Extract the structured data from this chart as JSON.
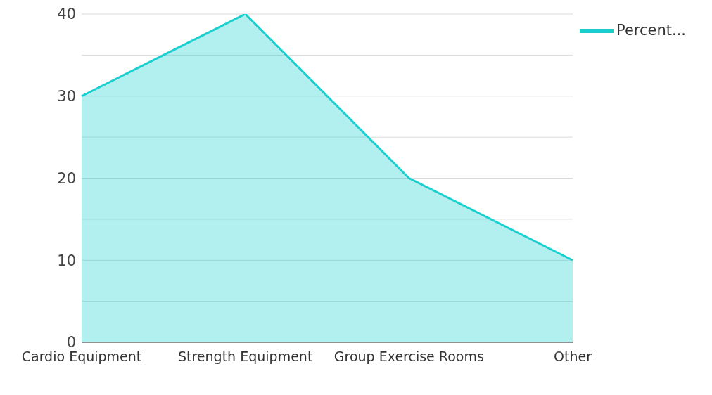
{
  "chart_data": {
    "type": "area",
    "categories": [
      "Cardio Equipment",
      "Strength Equipment",
      "Group Exercise Rooms",
      "Other"
    ],
    "series": [
      {
        "name": "Percent...",
        "color": "#1ccfcf",
        "values": [
          30,
          40,
          20,
          10
        ]
      }
    ],
    "ylim": [
      0,
      40
    ],
    "yticks": [
      0,
      {
        "value": 5,
        "label": null
      },
      10,
      {
        "value": 15,
        "label": null
      },
      20,
      {
        "value": 25,
        "label": null
      },
      30,
      {
        "value": 35,
        "label": null
      },
      40
    ],
    "grid": "y",
    "legend": "top right"
  }
}
